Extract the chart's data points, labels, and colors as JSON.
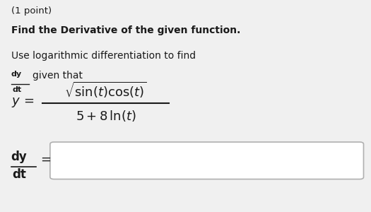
{
  "background_color": "#f0f0f0",
  "text_color": "#1a1a1a",
  "point_text": "(1 point)",
  "title_text": "Find the Derivative of the given function.",
  "instruction_text": "Use logarithmic differentiation to find",
  "given_that_text": "given that",
  "numerator_math": "$\\sqrt{\\sin(t)\\cos(t)}$",
  "denominator_math": "$5 + 8\\,\\ln(t)$",
  "y_eq": "$y\\,=$",
  "answer_equals": "=",
  "box_color": "#ffffff",
  "box_edge_color": "#b0b0b0"
}
